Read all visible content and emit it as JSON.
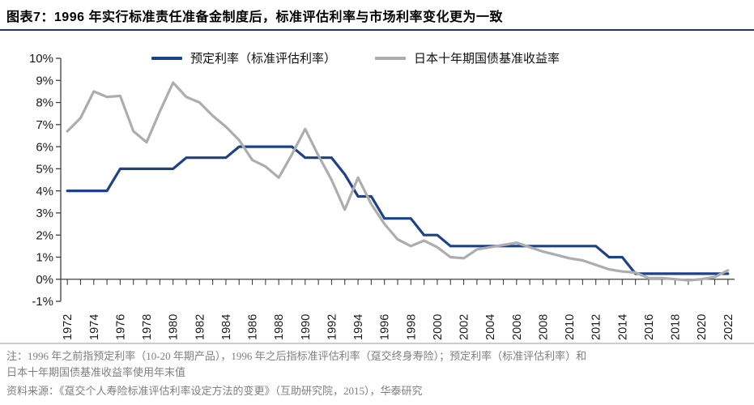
{
  "header": {
    "title": "图表7：1996 年实行标准责任准备金制度后，标准评估利率与市场利率变化更为一致"
  },
  "colors": {
    "title_rule": "#1f3864",
    "bottom_rule": "#c3cddd",
    "note_text": "#7f7f7f",
    "axis": "#3f3f3f",
    "tick_label": "#1a1a1a",
    "assumed_rate_line": "#1d4289",
    "jgb_yield_line": "#adadad"
  },
  "chart_data": {
    "type": "line",
    "title": "",
    "xlabel": "",
    "ylabel": "",
    "grid": false,
    "legend_position": "top",
    "ylim": [
      -1,
      10
    ],
    "y_tick_labels": [
      "10%",
      "9%",
      "8%",
      "7%",
      "6%",
      "5%",
      "4%",
      "3%",
      "2%",
      "1%",
      "0%",
      "-1%"
    ],
    "x": [
      1972,
      1973,
      1974,
      1975,
      1976,
      1977,
      1978,
      1979,
      1980,
      1981,
      1982,
      1983,
      1984,
      1985,
      1986,
      1987,
      1988,
      1989,
      1990,
      1991,
      1992,
      1993,
      1994,
      1995,
      1996,
      1997,
      1998,
      1999,
      2000,
      2001,
      2002,
      2003,
      2004,
      2005,
      2006,
      2007,
      2008,
      2009,
      2010,
      2011,
      2012,
      2013,
      2014,
      2015,
      2016,
      2017,
      2018,
      2019,
      2020,
      2021,
      2022
    ],
    "x_tick_labels": [
      "1972",
      "1974",
      "1976",
      "1978",
      "1980",
      "1982",
      "1984",
      "1986",
      "1988",
      "1990",
      "1992",
      "1994",
      "1996",
      "1998",
      "2000",
      "2002",
      "2004",
      "2006",
      "2008",
      "2010",
      "2012",
      "2014",
      "2016",
      "2018",
      "2020",
      "2022"
    ],
    "series": [
      {
        "name": "预定利率（标准评估利率）",
        "color": "#1d4289",
        "values": [
          4,
          4,
          4,
          4,
          5,
          5,
          5,
          5,
          5,
          5.5,
          5.5,
          5.5,
          5.5,
          6,
          6,
          6,
          6,
          6,
          5.5,
          5.5,
          5.5,
          4.75,
          3.75,
          3.75,
          2.75,
          2.75,
          2.75,
          2,
          2,
          1.5,
          1.5,
          1.5,
          1.5,
          1.5,
          1.5,
          1.5,
          1.5,
          1.5,
          1.5,
          1.5,
          1.5,
          1,
          1,
          0.25,
          0.25,
          0.25,
          0.25,
          0.25,
          0.25,
          0.25,
          0.25
        ]
      },
      {
        "name": "日本十年期国债基准收益率",
        "color": "#adadad",
        "values": [
          6.7,
          7.3,
          8.5,
          8.25,
          8.3,
          6.7,
          6.2,
          7.6,
          8.9,
          8.25,
          8.0,
          7.4,
          6.9,
          6.3,
          5.4,
          5.1,
          4.6,
          5.65,
          6.8,
          5.6,
          4.5,
          3.15,
          4.6,
          3.4,
          2.5,
          1.8,
          1.5,
          1.75,
          1.45,
          1.0,
          0.95,
          1.35,
          1.45,
          1.55,
          1.65,
          1.45,
          1.25,
          1.1,
          0.95,
          0.85,
          0.65,
          0.45,
          0.35,
          0.3,
          0.05,
          0.05,
          0.0,
          -0.05,
          0.0,
          0.1,
          0.4
        ]
      }
    ]
  },
  "footer": {
    "note_line1": "注：1996 年之前指预定利率（10-20 年期产品），1996 年之后指标准评估利率（趸交终身寿险）；预定利率（标准评估利率）和",
    "note_line2": "日本十年期国债基准收益率使用年末值",
    "source": "资料来源：《趸交个人寿险标准评估利率设定方法的变更》（互助研究院，2015），华泰研究"
  }
}
